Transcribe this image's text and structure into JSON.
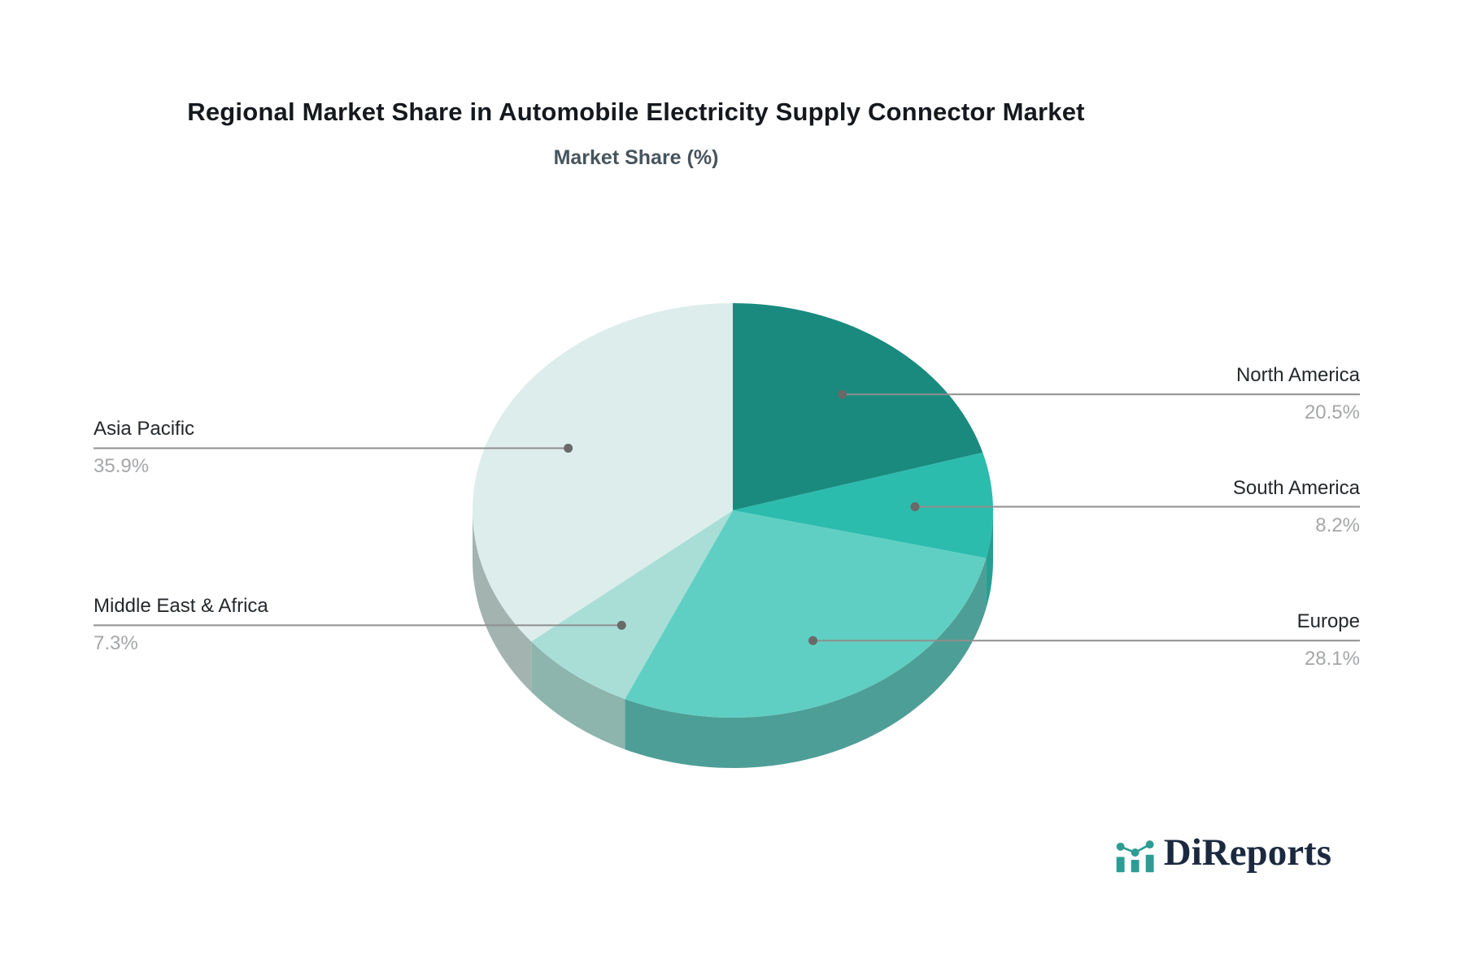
{
  "title": "Regional Market Share in Automobile Electricity Supply Connector Market",
  "subtitle": "Market Share (%)",
  "chart_data": {
    "type": "pie",
    "title": "Regional Market Share in Automobile Electricity Supply Connector Market",
    "subtitle": "Market Share (%)",
    "unit": "%",
    "style": "3d-pie",
    "start_angle_deg": 0,
    "direction": "clockwise",
    "legend_position": "callout-labels",
    "slices": [
      {
        "label": "North America",
        "value": 20.5,
        "display": "20.5%",
        "color": "#1a8a7f",
        "side_color": "#156e66"
      },
      {
        "label": "South America",
        "value": 8.2,
        "display": "8.2%",
        "color": "#2cbcae",
        "side_color": "#279e92"
      },
      {
        "label": "Europe",
        "value": 28.1,
        "display": "28.1%",
        "color": "#60cfc3",
        "side_color": "#4d9e96"
      },
      {
        "label": "Middle East & Africa",
        "value": 7.3,
        "display": "7.3%",
        "color": "#a9ded7",
        "side_color": "#8db4ad"
      },
      {
        "label": "Asia Pacific",
        "value": 35.9,
        "display": "35.9%",
        "color": "#dcedeb",
        "side_color": "#a2b3b0"
      }
    ]
  },
  "colors": {
    "background": "#ffffff",
    "title_text": "#15191e",
    "subtitle_text": "#46545d",
    "label_text": "#24282b",
    "percent_text": "#a4a6a8",
    "leader_line": "#8f8f8f",
    "leader_dot": "#696969"
  },
  "logo": {
    "text": "DiReports",
    "icon": "bar-chart-logo-icon",
    "accent": "#2d9c94",
    "text_color": "#1b2940"
  }
}
